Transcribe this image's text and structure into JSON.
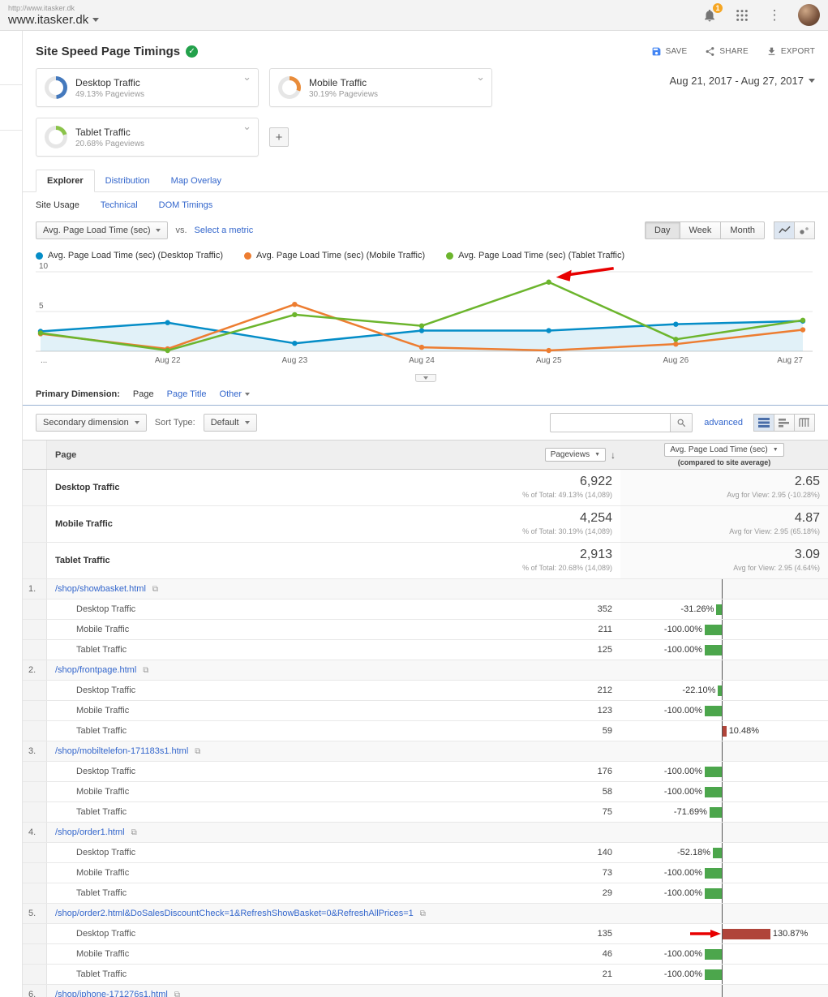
{
  "topbar": {
    "url_label": "http://www.itasker.dk",
    "account_name": "www.itasker.dk",
    "notification_count": "1"
  },
  "header": {
    "title": "Site Speed Page Timings",
    "save_label": "SAVE",
    "share_label": "SHARE",
    "export_label": "EXPORT"
  },
  "date_range": "Aug 21, 2017 - Aug 27, 2017",
  "segments": [
    {
      "name": "Desktop Traffic",
      "detail": "49.13% Pageviews",
      "percent": 49.13,
      "color": "#4479bd"
    },
    {
      "name": "Mobile Traffic",
      "detail": "30.19% Pageviews",
      "percent": 30.19,
      "color": "#e98c3a"
    },
    {
      "name": "Tablet Traffic",
      "detail": "20.68% Pageviews",
      "percent": 20.68,
      "color": "#8bc34a"
    }
  ],
  "tabs": [
    {
      "label": "Explorer",
      "active": true
    },
    {
      "label": "Distribution",
      "active": false
    },
    {
      "label": "Map Overlay",
      "active": false
    }
  ],
  "subtabs": [
    {
      "label": "Site Usage",
      "active": true
    },
    {
      "label": "Technical",
      "active": false
    },
    {
      "label": "DOM Timings",
      "active": false
    }
  ],
  "metric_toolbar": {
    "metric_dropdown": "Avg. Page Load Time (sec)",
    "vs_label": "vs.",
    "select_metric_label": "Select a metric",
    "granularity": [
      "Day",
      "Week",
      "Month"
    ],
    "active_granularity": "Day"
  },
  "legend": [
    {
      "label": "Avg. Page Load Time (sec) (Desktop Traffic)",
      "color": "#058dc7"
    },
    {
      "label": "Avg. Page Load Time (sec) (Mobile Traffic)",
      "color": "#ed7d31"
    },
    {
      "label": "Avg. Page Load Time (sec) (Tablet Traffic)",
      "color": "#6cb52d"
    }
  ],
  "chart_data": {
    "type": "line",
    "x_labels": [
      "...",
      "Aug 22",
      "Aug 23",
      "Aug 24",
      "Aug 25",
      "Aug 26",
      "Aug 27"
    ],
    "ylim": [
      0,
      10
    ],
    "yticks": [
      5,
      10
    ],
    "grid": true,
    "legend_position": "top",
    "series": [
      {
        "name": "Avg. Page Load Time (sec) (Desktop Traffic)",
        "color": "#058dc7",
        "fill": true,
        "values": [
          2.5,
          3.6,
          1.0,
          2.6,
          2.6,
          3.4,
          3.8
        ]
      },
      {
        "name": "Avg. Page Load Time (sec) (Mobile Traffic)",
        "color": "#ed7d31",
        "values": [
          2.2,
          0.3,
          5.9,
          0.5,
          0.1,
          0.9,
          2.7
        ]
      },
      {
        "name": "Avg. Page Load Time (sec) (Tablet Traffic)",
        "color": "#6cb52d",
        "values": [
          2.3,
          0.1,
          4.6,
          3.2,
          8.7,
          1.5,
          3.9
        ]
      }
    ],
    "annotation": {
      "type": "arrow",
      "series": 2,
      "index": 4
    }
  },
  "primary_dimension": {
    "label": "Primary Dimension:",
    "options": [
      {
        "label": "Page",
        "active": true,
        "caret": false
      },
      {
        "label": "Page Title",
        "active": false,
        "caret": false
      },
      {
        "label": "Other",
        "active": false,
        "caret": true
      }
    ]
  },
  "table_toolbar": {
    "secondary_dimension_label": "Secondary dimension",
    "sort_type_label": "Sort Type:",
    "sort_type_value": "Default",
    "advanced_label": "advanced"
  },
  "colors": {
    "positive_bar": "#b0443a",
    "negative_bar": "#4ca64c",
    "annotation": "#e80000",
    "link": "#3366cc"
  },
  "table": {
    "header": {
      "page": "Page",
      "pageviews": "Pageviews",
      "metric": "Avg. Page Load Time (sec)",
      "metric_note": "(compared to site average)"
    },
    "summary_rows": [
      {
        "name": "Desktop Traffic",
        "pageviews": "6,922",
        "pageviews_note": "% of Total: 49.13% (14,089)",
        "value": "2.65",
        "value_note": "Avg for View: 2.95 (-10.28%)"
      },
      {
        "name": "Mobile Traffic",
        "pageviews": "4,254",
        "pageviews_note": "% of Total: 30.19% (14,089)",
        "value": "4.87",
        "value_note": "Avg for View: 2.95 (65.18%)"
      },
      {
        "name": "Tablet Traffic",
        "pageviews": "2,913",
        "pageviews_note": "% of Total: 20.68% (14,089)",
        "value": "3.09",
        "value_note": "Avg for View: 2.95 (4.64%)"
      }
    ],
    "rows": [
      {
        "index": "1.",
        "page": "/shop/showbasket.html",
        "segments": [
          {
            "name": "Desktop Traffic",
            "pageviews": "352",
            "delta_pct": -31.26,
            "delta_label": "-31.26%"
          },
          {
            "name": "Mobile Traffic",
            "pageviews": "211",
            "delta_pct": -100.0,
            "delta_label": "-100.00%"
          },
          {
            "name": "Tablet Traffic",
            "pageviews": "125",
            "delta_pct": -100.0,
            "delta_label": "-100.00%"
          }
        ]
      },
      {
        "index": "2.",
        "page": "/shop/frontpage.html",
        "segments": [
          {
            "name": "Desktop Traffic",
            "pageviews": "212",
            "delta_pct": -22.1,
            "delta_label": "-22.10%"
          },
          {
            "name": "Mobile Traffic",
            "pageviews": "123",
            "delta_pct": -100.0,
            "delta_label": "-100.00%"
          },
          {
            "name": "Tablet Traffic",
            "pageviews": "59",
            "delta_pct": 10.48,
            "delta_label": "10.48%"
          }
        ]
      },
      {
        "index": "3.",
        "page": "/shop/mobiltelefon-171183s1.html",
        "segments": [
          {
            "name": "Desktop Traffic",
            "pageviews": "176",
            "delta_pct": -100.0,
            "delta_label": "-100.00%"
          },
          {
            "name": "Mobile Traffic",
            "pageviews": "58",
            "delta_pct": -100.0,
            "delta_label": "-100.00%"
          },
          {
            "name": "Tablet Traffic",
            "pageviews": "75",
            "delta_pct": -71.69,
            "delta_label": "-71.69%"
          }
        ]
      },
      {
        "index": "4.",
        "page": "/shop/order1.html",
        "segments": [
          {
            "name": "Desktop Traffic",
            "pageviews": "140",
            "delta_pct": -52.18,
            "delta_label": "-52.18%"
          },
          {
            "name": "Mobile Traffic",
            "pageviews": "73",
            "delta_pct": -100.0,
            "delta_label": "-100.00%"
          },
          {
            "name": "Tablet Traffic",
            "pageviews": "29",
            "delta_pct": -100.0,
            "delta_label": "-100.00%"
          }
        ]
      },
      {
        "index": "5.",
        "page": "/shop/order2.html&DoSalesDiscountCheck=1&RefreshShowBasket=0&RefreshAllPrices=1",
        "segments": [
          {
            "name": "Desktop Traffic",
            "pageviews": "135",
            "delta_pct": 130.87,
            "delta_label": "130.87%",
            "annotated": true
          },
          {
            "name": "Mobile Traffic",
            "pageviews": "46",
            "delta_pct": -100.0,
            "delta_label": "-100.00%"
          },
          {
            "name": "Tablet Traffic",
            "pageviews": "21",
            "delta_pct": -100.0,
            "delta_label": "-100.00%"
          }
        ]
      },
      {
        "index": "6.",
        "page": "/shop/iphone-171276s1.html",
        "segments": []
      }
    ]
  }
}
